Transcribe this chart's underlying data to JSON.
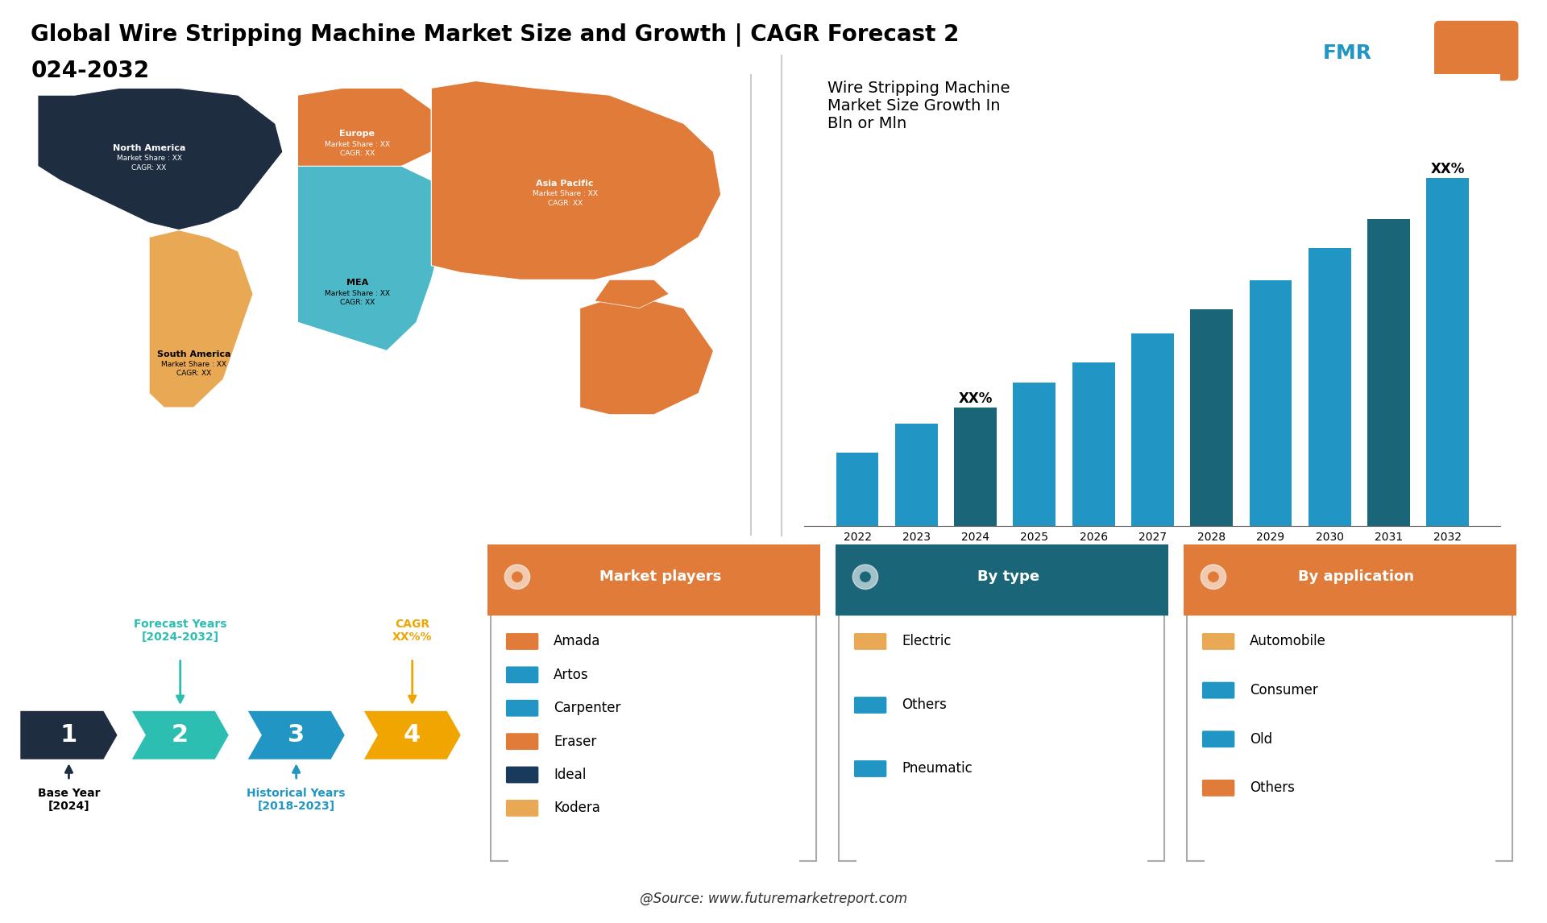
{
  "title_line1": "Global Wire Stripping Machine Market Size and Growth | CAGR Forecast 2",
  "title_line2": "024-2032",
  "chart_title": "Wire Stripping Machine\nMarket Size Growth In\nBln or Mln",
  "bar_years": [
    "2022",
    "2023",
    "2024",
    "2025",
    "2026",
    "2027",
    "2028",
    "2029",
    "2030",
    "2031",
    "2032"
  ],
  "bar_values": [
    1.8,
    2.5,
    2.9,
    3.5,
    4.0,
    4.7,
    5.3,
    6.0,
    6.8,
    7.5,
    8.5
  ],
  "bar_color_light": "#2196c4",
  "bar_color_dark": "#1a6678",
  "bar_dark_indices": [
    2,
    6,
    9
  ],
  "bar_anno_2024": "XX%",
  "bar_anno_2032": "XX%",
  "steps": [
    {
      "num": "1",
      "color": "#1e2d40"
    },
    {
      "num": "2",
      "color": "#2cbfb1"
    },
    {
      "num": "3",
      "color": "#2196c4"
    },
    {
      "num": "4",
      "color": "#f0a500"
    }
  ],
  "forecast_label": "Forecast Years\n[2024-2032]",
  "forecast_color": "#2cbfb1",
  "cagr_label": "CAGR\nXX%%",
  "cagr_color": "#f0a500",
  "base_year_label": "Base Year\n[2024]",
  "historical_label": "Historical Years\n[2018-2023]",
  "historical_color": "#2196c4",
  "market_players_header": "Market players",
  "market_players_color": "#e07b39",
  "market_players": [
    "Amada",
    "Artos",
    "Carpenter",
    "Eraser",
    "Ideal",
    "Kodera"
  ],
  "market_players_colors": [
    "#e07b39",
    "#2196c4",
    "#2196c4",
    "#e07b39",
    "#1a3a5c",
    "#e8a854"
  ],
  "by_type_header": "By type",
  "by_type_color": "#1a6678",
  "by_type": [
    "Electric",
    "Others",
    "Pneumatic"
  ],
  "by_type_colors": [
    "#e8a854",
    "#2196c4",
    "#2196c4"
  ],
  "by_app_header": "By application",
  "by_app_color": "#e07b39",
  "by_app": [
    "Automobile",
    "Consumer",
    "Old",
    "Others"
  ],
  "by_app_colors": [
    "#e8a854",
    "#2196c4",
    "#2196c4",
    "#e07b39"
  ],
  "source_text": "@Source: www.futuremarketreport.com",
  "bg_color": "#ffffff",
  "title_fontsize": 20,
  "na_color": "#1e2d40",
  "eu_color": "#e07b39",
  "ap_color": "#e07b39",
  "mea_color": "#4db8c8",
  "sa_color": "#e8a854",
  "aus_color": "#e07b39",
  "logo_fmr_color": "#2196c4",
  "logo_text_color": "#2196c4",
  "logo_icon_color": "#e07b39"
}
